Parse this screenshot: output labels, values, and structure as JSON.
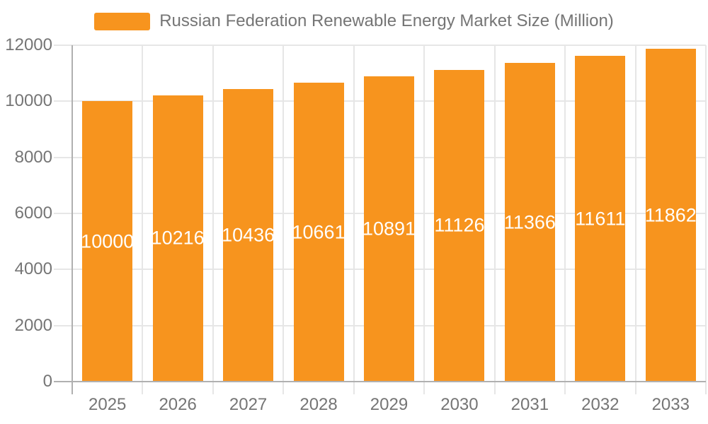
{
  "chart_data": {
    "type": "bar",
    "title": "Russian Federation Renewable Energy Market Size (Million)",
    "categories": [
      "2025",
      "2026",
      "2027",
      "2028",
      "2029",
      "2030",
      "2031",
      "2032",
      "2033"
    ],
    "values": [
      10000,
      10216,
      10436,
      10661,
      10891,
      11126,
      11366,
      11611,
      11862
    ],
    "series": [
      {
        "name": "Russian Federation Renewable Energy Market Size (Million)",
        "values": [
          10000,
          10216,
          10436,
          10661,
          10891,
          11126,
          11366,
          11611,
          11862
        ]
      }
    ],
    "xlabel": "",
    "ylabel": "",
    "ylim": [
      0,
      12000
    ],
    "yticks": [
      0,
      2000,
      4000,
      6000,
      8000,
      10000,
      12000
    ],
    "grid": true,
    "legend_position": "top",
    "bar_value_labels_shown": true
  },
  "legend": {
    "label": "Russian Federation Renewable Energy Market Size (Million)",
    "swatch_color": "#F7941E"
  },
  "colors": {
    "bar": "#F7941E",
    "bar_label": "#FFFFFF",
    "gridline": "#E6E6E6",
    "axis_line": "#B0B0B0",
    "tick_text": "#757575",
    "legend_text": "#757575",
    "background": "#FFFFFF"
  }
}
